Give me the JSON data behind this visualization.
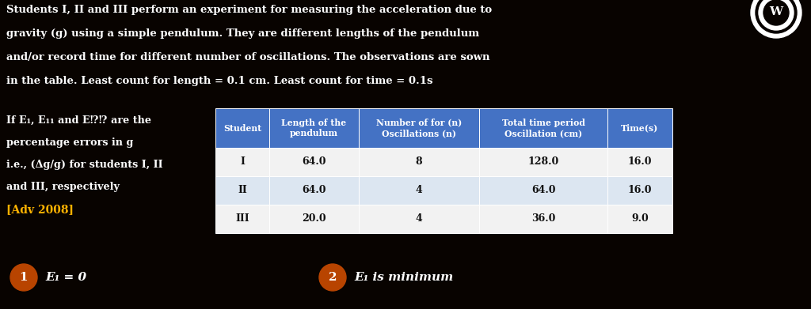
{
  "bg_color": "#080300",
  "title_lines": [
    "Students I, II and III perform an experiment for measuring the acceleration due to",
    "gravity (g) using a simple pendulum. They are different lengths of the pendulum",
    "and/or record time for different number of oscillations. The observations are sown",
    "in the table. Least count for length = 0.1 cm. Least count for time = 0.1s"
  ],
  "left_lines": [
    "If E₁, E₁₁ and E⁉⁉ are the",
    "percentage errors in g",
    "i.e., (Δg/g) for students I, II",
    "and III, respectively"
  ],
  "left_adv": "[Adv 2008]",
  "table_header_bg": "#4472c4",
  "table_row_bgs": [
    "#f2f2f2",
    "#dce6f1",
    "#f2f2f2"
  ],
  "table_header_color": "#ffffff",
  "table_data_color": "#111111",
  "headers": [
    "Student",
    "Length of the\npendulum",
    "Number of for (n)\nOscillations (n)",
    "Total time period\nOscillation (cm)",
    "Time(s)"
  ],
  "rows": [
    [
      "I",
      "64.0",
      "8",
      "128.0",
      "16.0"
    ],
    [
      "II",
      "64.0",
      "4",
      "64.0",
      "16.0"
    ],
    [
      "III",
      "20.0",
      "4",
      "36.0",
      "9.0"
    ]
  ],
  "option_circle_color": "#b84400",
  "option1_num": "1",
  "option1_text": "E₁ = 0",
  "option2_num": "2",
  "option2_text": "E₁ is minimum",
  "adv_color": "#FFB300",
  "logo_color": "#ffffff"
}
